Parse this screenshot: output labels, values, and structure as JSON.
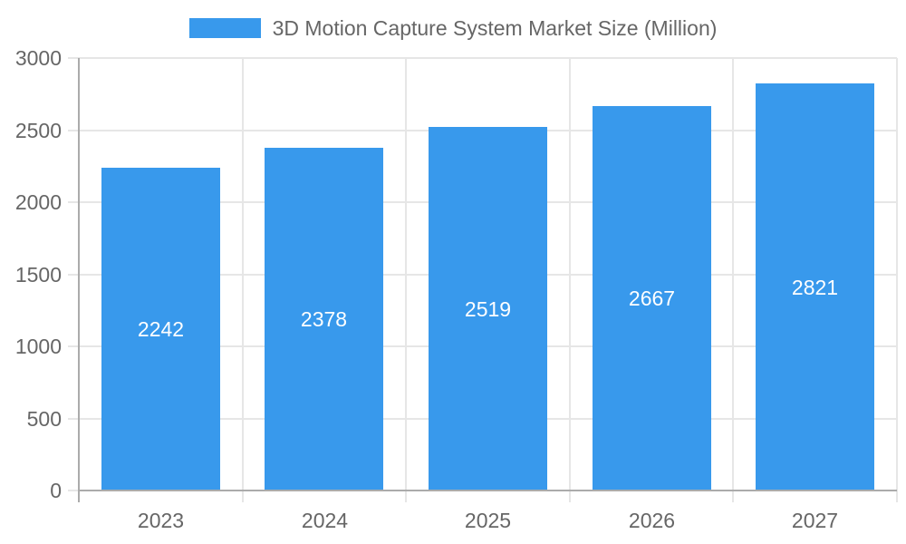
{
  "legend": {
    "position": "top"
  },
  "chart_data": {
    "type": "bar",
    "title": "3D Motion Capture System Market Size (Million)",
    "categories": [
      "2023",
      "2024",
      "2025",
      "2026",
      "2027"
    ],
    "values": [
      2242,
      2378,
      2519,
      2667,
      2821
    ],
    "series": [
      {
        "name": "3D Motion Capture System Market Size (Million)",
        "values": [
          2242,
          2378,
          2519,
          2667,
          2821
        ]
      }
    ],
    "xlabel": "",
    "ylabel": "",
    "ylim": [
      0,
      3000
    ],
    "ytick_step": 500,
    "yticks": [
      0,
      500,
      1000,
      1500,
      2000,
      2500,
      3000
    ],
    "grid": true,
    "legend_position": "top",
    "bar_labels_shown": true,
    "colors": {
      "bar": "#3899EC",
      "grid": "#E6E6E6",
      "axis": "#ABABAB",
      "tick_text": "#666666",
      "legend_text": "#666666",
      "bar_label_text": "#FFFFFF",
      "background": "#FFFFFF"
    }
  }
}
